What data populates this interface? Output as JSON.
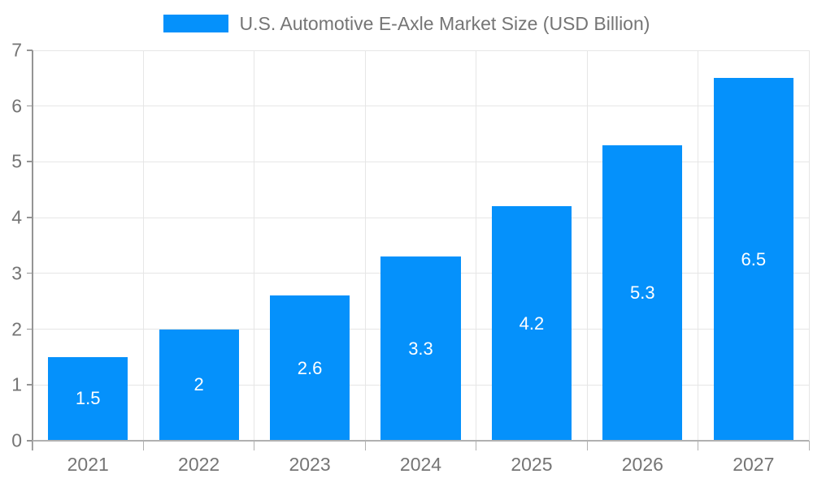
{
  "legend": {
    "position": "top",
    "label": "U.S. Automotive E-Axle Market Size (USD Billion)"
  },
  "chart_data": {
    "type": "bar",
    "title": "U.S. Automotive E-Axle Market Size (USD Billion)",
    "categories": [
      "2021",
      "2022",
      "2023",
      "2024",
      "2025",
      "2026",
      "2027"
    ],
    "values": [
      1.5,
      2,
      2.6,
      3.3,
      4.2,
      5.3,
      6.5
    ],
    "bar_labels": [
      "1.5",
      "2",
      "2.6",
      "3.3",
      "4.2",
      "5.3",
      "6.5"
    ],
    "xlabel": "",
    "ylabel": "",
    "ylim": [
      0,
      7
    ],
    "yticks": [
      0,
      1,
      2,
      3,
      4,
      5,
      6,
      7
    ],
    "grid": true,
    "legend_position": "top",
    "colors": {
      "bar": "#0591fb",
      "bar_label": "#ffffff",
      "gridline": "#e6e6e6",
      "y_axis_line": "#949494",
      "x_axis_line": "#b1b1b1",
      "axis_text": "#757575",
      "background": "#ffffff"
    }
  }
}
